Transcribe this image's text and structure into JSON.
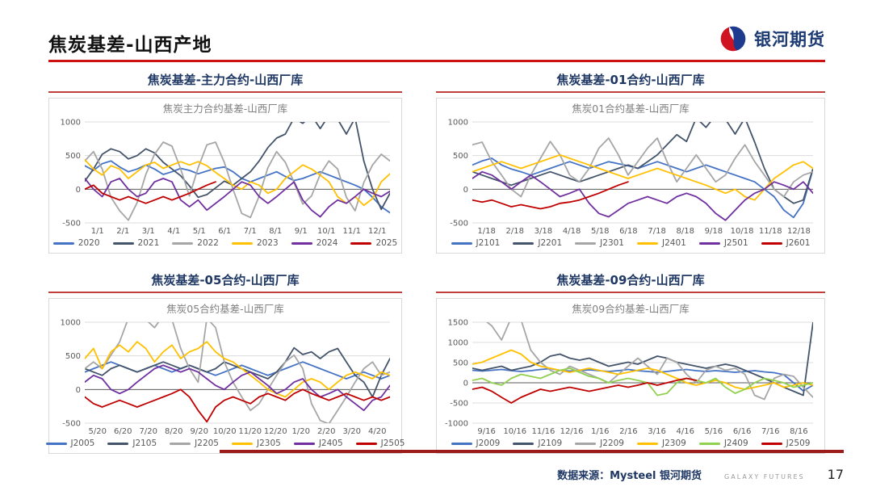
{
  "page": {
    "title": "焦炭基差-山西产地",
    "brand_name": "银河期货",
    "footer": {
      "source": "数据来源：Mysteel 银河期货",
      "brand": "GALAXY FUTURES",
      "page_number": "17"
    }
  },
  "colors": {
    "accent_red": "#cc1111",
    "panel_title_blue": "#1f3864",
    "grid_line": "#dcdcdc",
    "zero_line": "#595959",
    "axis_text": "#595959"
  },
  "chart_data": [
    {
      "type": "line",
      "header": "焦炭基差-主力合约-山西厂库",
      "inner_title": "焦炭主力合约基差-山西厂库",
      "ylim": [
        -500,
        1000
      ],
      "yticks": [
        1000,
        500,
        0,
        -500
      ],
      "points": 36,
      "categories": [
        "1/1",
        "2/1",
        "3/1",
        "4/1",
        "5/1",
        "6/1",
        "7/1",
        "8/1",
        "9/1",
        "10/1",
        "11/1",
        "12/1"
      ],
      "series": [
        {
          "name": "2020",
          "color": "#4472C4",
          "values": [
            350,
            280,
            380,
            420,
            330,
            260,
            300,
            360,
            300,
            220,
            260,
            310,
            280,
            230,
            270,
            310,
            330,
            260,
            160,
            110,
            160,
            210,
            260,
            190,
            130,
            160,
            210,
            260,
            210,
            160,
            110,
            60,
            0,
            -120,
            -260,
            -350
          ]
        },
        {
          "name": "2021",
          "color": "#44546A",
          "values": [
            120,
            300,
            520,
            600,
            560,
            450,
            500,
            600,
            540,
            400,
            300,
            200,
            50,
            -120,
            -80,
            20,
            120,
            60,
            160,
            260,
            420,
            620,
            760,
            820,
            1060,
            980,
            1100,
            900,
            1100,
            1040,
            820,
            1060,
            420,
            0,
            -300,
            -60
          ]
        },
        {
          "name": "2022",
          "color": "#A6A6A6",
          "values": [
            420,
            560,
            300,
            -120,
            -320,
            -460,
            -200,
            220,
            520,
            700,
            640,
            300,
            -100,
            320,
            660,
            700,
            400,
            0,
            -360,
            -420,
            -100,
            320,
            560,
            400,
            100,
            -220,
            -100,
            220,
            420,
            300,
            -120,
            -320,
            100,
            360,
            520,
            420
          ]
        },
        {
          "name": "2023",
          "color": "#FFC000",
          "values": [
            440,
            300,
            210,
            350,
            300,
            160,
            260,
            360,
            400,
            310,
            360,
            410,
            360,
            410,
            350,
            250,
            160,
            60,
            0,
            110,
            60,
            -60,
            0,
            160,
            260,
            360,
            300,
            210,
            110,
            -110,
            -210,
            -110,
            -240,
            -140,
            110,
            230
          ]
        },
        {
          "name": "2024",
          "color": "#7030A0",
          "values": [
            160,
            0,
            -110,
            110,
            160,
            0,
            -110,
            -60,
            110,
            160,
            110,
            -160,
            -260,
            -160,
            -310,
            -210,
            -110,
            0,
            110,
            60,
            -110,
            -210,
            -110,
            0,
            110,
            -160,
            -310,
            -410,
            -260,
            -160,
            -210,
            -110,
            0,
            -60,
            -110,
            -30
          ]
        },
        {
          "name": "2025",
          "color": "#C00000",
          "values": [
            0,
            60,
            -60,
            -110,
            -160,
            -110,
            -160,
            -210,
            -160,
            -110,
            -160,
            -110,
            -60,
            0,
            60,
            110
          ]
        }
      ]
    },
    {
      "type": "line",
      "header": "焦炭基差-01合约-山西厂库",
      "inner_title": "焦炭01合约基差-山西厂库",
      "ylim": [
        -500,
        1000
      ],
      "yticks": [
        1000,
        500,
        0,
        -500
      ],
      "points": 36,
      "categories": [
        "1/18",
        "2/18",
        "3/18",
        "4/18",
        "5/18",
        "6/18",
        "7/18",
        "8/18",
        "9/18",
        "10/18",
        "11/18",
        "12/18"
      ],
      "series": [
        {
          "name": "J2101",
          "color": "#4472C4",
          "values": [
            360,
            420,
            460,
            360,
            300,
            260,
            210,
            260,
            310,
            360,
            410,
            360,
            310,
            360,
            410,
            380,
            350,
            310,
            360,
            410,
            360,
            310,
            260,
            310,
            360,
            310,
            260,
            210,
            160,
            110,
            0,
            -110,
            -310,
            -420,
            -210,
            300
          ]
        },
        {
          "name": "J2201",
          "color": "#44546A",
          "values": [
            260,
            210,
            160,
            110,
            60,
            110,
            160,
            210,
            260,
            210,
            160,
            110,
            160,
            210,
            260,
            310,
            360,
            310,
            410,
            510,
            660,
            810,
            710,
            1060,
            920,
            1100,
            1040,
            820,
            1060,
            700,
            310,
            0,
            -110,
            -210,
            -160,
            310
          ]
        },
        {
          "name": "J2301",
          "color": "#A6A6A6",
          "values": [
            660,
            700,
            410,
            210,
            0,
            -110,
            210,
            460,
            710,
            510,
            210,
            110,
            310,
            610,
            760,
            510,
            210,
            410,
            610,
            760,
            410,
            110,
            310,
            510,
            310,
            110,
            210,
            460,
            660,
            410,
            210,
            0,
            -110,
            110,
            210,
            260
          ]
        },
        {
          "name": "J2401",
          "color": "#FFC000",
          "values": [
            260,
            310,
            360,
            410,
            360,
            310,
            360,
            410,
            460,
            510,
            460,
            410,
            360,
            310,
            260,
            210,
            160,
            210,
            260,
            310,
            260,
            210,
            160,
            110,
            60,
            0,
            -60,
            0,
            -110,
            -160,
            0,
            160,
            260,
            360,
            410,
            310
          ]
        },
        {
          "name": "J2501",
          "color": "#7030A0",
          "values": [
            160,
            260,
            210,
            110,
            0,
            110,
            210,
            110,
            0,
            -110,
            -60,
            0,
            -210,
            -360,
            -410,
            -310,
            -210,
            -160,
            -110,
            -160,
            -210,
            -110,
            -60,
            -110,
            -210,
            -360,
            -460,
            -310,
            -160,
            -60,
            0,
            110,
            60,
            0,
            110,
            -60
          ]
        },
        {
          "name": "J2601",
          "color": "#C00000",
          "values": [
            -160,
            -190,
            -160,
            -210,
            -260,
            -230,
            -260,
            -290,
            -260,
            -210,
            -190,
            -160,
            -110,
            -60,
            0,
            60,
            110
          ]
        }
      ]
    },
    {
      "type": "line",
      "header": "焦炭基差-05合约-山西厂库",
      "inner_title": "焦炭05合约基差-山西厂库",
      "ylim": [
        -500,
        1000
      ],
      "yticks": [
        1000,
        500,
        0,
        -500
      ],
      "points": 36,
      "categories": [
        "5/20",
        "6/20",
        "7/20",
        "8/20",
        "9/20",
        "10/20",
        "11/20",
        "12/20",
        "1/20",
        "2/20",
        "3/20",
        "4/20"
      ],
      "series": [
        {
          "name": "J2005",
          "color": "#4472C4",
          "values": [
            260,
            310,
            360,
            410,
            360,
            310,
            260,
            310,
            360,
            310,
            260,
            310,
            360,
            310,
            260,
            210,
            260,
            310,
            360,
            310,
            260,
            210,
            260,
            310,
            360,
            410,
            360,
            310,
            260,
            210,
            160,
            210,
            260,
            210,
            160,
            210
          ]
        },
        {
          "name": "J2105",
          "color": "#44546A",
          "values": [
            310,
            260,
            210,
            310,
            360,
            310,
            260,
            310,
            360,
            410,
            360,
            310,
            360,
            310,
            260,
            310,
            410,
            360,
            310,
            260,
            210,
            160,
            260,
            410,
            620,
            520,
            560,
            460,
            560,
            610,
            410,
            210,
            110,
            -110,
            210,
            460
          ]
        },
        {
          "name": "J2205",
          "color": "#A6A6A6",
          "values": [
            310,
            410,
            310,
            510,
            710,
            1060,
            1100,
            1040,
            920,
            1100,
            1040,
            610,
            310,
            110,
            1060,
            920,
            410,
            110,
            -110,
            -310,
            -210,
            0,
            210,
            410,
            510,
            310,
            -210,
            -460,
            -510,
            -310,
            -110,
            110,
            310,
            410,
            210,
            260
          ]
        },
        {
          "name": "J2305",
          "color": "#FFC000",
          "values": [
            460,
            610,
            310,
            560,
            660,
            560,
            710,
            610,
            410,
            560,
            660,
            460,
            560,
            610,
            710,
            560,
            460,
            410,
            310,
            210,
            110,
            0,
            -60,
            -110,
            0,
            110,
            160,
            110,
            0,
            110,
            210,
            260,
            210,
            160,
            260,
            210
          ]
        },
        {
          "name": "J2405",
          "color": "#7030A0",
          "values": [
            110,
            210,
            160,
            0,
            -60,
            0,
            110,
            210,
            310,
            360,
            310,
            260,
            310,
            260,
            160,
            60,
            0,
            110,
            210,
            260,
            160,
            60,
            -60,
            0,
            110,
            160,
            0,
            -110,
            -60,
            0,
            -110,
            -210,
            -310,
            -160,
            -110,
            60
          ]
        },
        {
          "name": "J2505",
          "color": "#C00000",
          "values": [
            -110,
            -210,
            -260,
            -210,
            -160,
            -210,
            -260,
            -210,
            -160,
            -110,
            -60,
            0,
            -110,
            -310,
            -480,
            -260,
            -160,
            -110,
            -160,
            -210,
            -110,
            -60,
            -110,
            -160,
            -60,
            0,
            -60,
            -110,
            -160,
            -110,
            -60,
            -110,
            -160,
            -110,
            -160,
            -110
          ]
        }
      ]
    },
    {
      "type": "line",
      "header": "焦炭基差-09合约-山西厂库",
      "inner_title": "焦炭09合约基差-山西厂库",
      "ylim": [
        -1000,
        1500
      ],
      "yticks": [
        1500,
        1000,
        500,
        0,
        -500,
        -1000
      ],
      "points": 36,
      "categories": [
        "9/16",
        "10/16",
        "11/16",
        "12/16",
        "1/16",
        "2/16",
        "3/16",
        "4/16",
        "5/16",
        "6/16",
        "7/16",
        "8/16"
      ],
      "series": [
        {
          "name": "J2009",
          "color": "#4472C4",
          "values": [
            310,
            290,
            310,
            330,
            300,
            280,
            300,
            330,
            350,
            310,
            290,
            300,
            320,
            300,
            280,
            300,
            330,
            300,
            280,
            260,
            280,
            310,
            330,
            300,
            280,
            300,
            280,
            260,
            280,
            300,
            270,
            250,
            200,
            0,
            -200,
            -60
          ]
        },
        {
          "name": "J2109",
          "color": "#44546A",
          "values": [
            360,
            310,
            360,
            410,
            310,
            360,
            410,
            510,
            660,
            710,
            610,
            560,
            610,
            510,
            410,
            460,
            510,
            460,
            560,
            660,
            610,
            510,
            460,
            410,
            360,
            410,
            460,
            410,
            310,
            210,
            110,
            0,
            -110,
            -210,
            -310,
            1500
          ]
        },
        {
          "name": "J2209",
          "color": "#A6A6A6",
          "values": [
            1560,
            1600,
            1410,
            1060,
            1610,
            1560,
            810,
            510,
            310,
            210,
            410,
            310,
            210,
            110,
            0,
            210,
            410,
            610,
            410,
            210,
            610,
            510,
            210,
            0,
            310,
            410,
            310,
            360,
            210,
            -310,
            -410,
            110,
            210,
            160,
            -110,
            -360
          ]
        },
        {
          "name": "J2309",
          "color": "#FFC000",
          "values": [
            460,
            510,
            610,
            710,
            810,
            710,
            510,
            410,
            360,
            310,
            260,
            310,
            360,
            310,
            260,
            210,
            260,
            310,
            360,
            310,
            210,
            110,
            0,
            -60,
            0,
            60,
            0,
            -110,
            -160,
            -110,
            -60,
            0,
            -110,
            -60,
            0,
            -60
          ]
        },
        {
          "name": "J2409",
          "color": "#92D050",
          "values": [
            60,
            110,
            0,
            -60,
            110,
            210,
            160,
            110,
            210,
            310,
            360,
            260,
            160,
            110,
            0,
            60,
            110,
            60,
            0,
            -310,
            -260,
            0,
            110,
            60,
            0,
            110,
            -110,
            -260,
            -160,
            0,
            110,
            60,
            0,
            -110,
            -60,
            0
          ]
        },
        {
          "name": "J2509",
          "color": "#C00000",
          "values": [
            -160,
            -110,
            -210,
            -360,
            -500,
            -360,
            -260,
            -160,
            -210,
            -160,
            -110,
            -160,
            -210,
            -160,
            -110,
            -60,
            -110,
            -60,
            0,
            -60,
            0,
            60,
            110,
            60
          ]
        }
      ]
    }
  ]
}
